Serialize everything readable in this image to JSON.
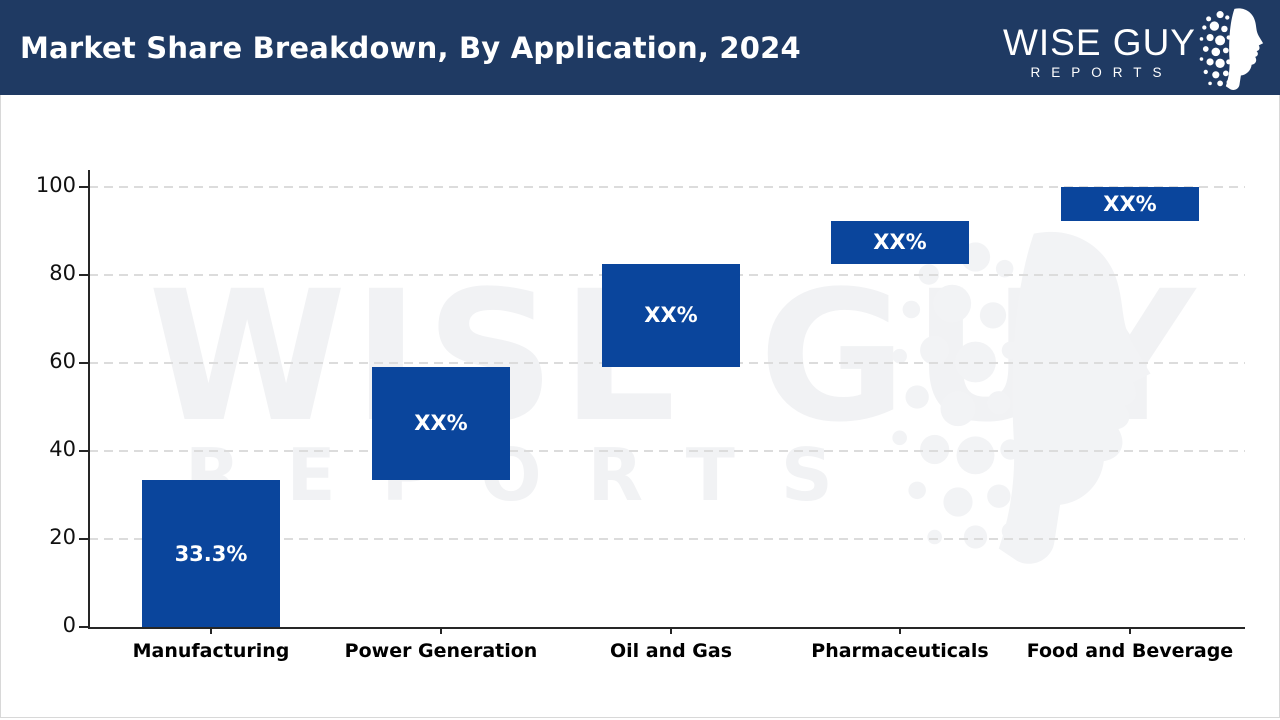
{
  "header": {
    "title": "Market Share Breakdown, By Application, 2024",
    "background_color": "#1f3a63",
    "logo": {
      "line1": "WISE GUY",
      "line2": "REPORTS"
    }
  },
  "watermark": {
    "line1": "WISE GUY",
    "line2": "REPORTS"
  },
  "chart_data": {
    "type": "bar",
    "subtype": "waterfall-stacked-breakdown",
    "title": "Market Share Breakdown, By Application, 2024",
    "xlabel": "",
    "ylabel": "",
    "ylim": [
      0,
      100
    ],
    "yticks": [
      0,
      20,
      40,
      60,
      80,
      100
    ],
    "grid": "horizontal-dashed",
    "legend": "none",
    "bar_color": "#0a459c",
    "bar_label_color": "#ffffff",
    "categories": [
      "Manufacturing",
      "Power Generation",
      "Oil and Gas",
      "Pharmaceuticals",
      "Food and Beverage"
    ],
    "series": [
      {
        "name": "Market Share (%)",
        "segments": [
          {
            "category": "Manufacturing",
            "start": 0,
            "end": 33.3,
            "value": 33.3,
            "label": "33.3%"
          },
          {
            "category": "Power Generation",
            "start": 33.3,
            "end": 59.2,
            "value": 25.9,
            "label": "XX%"
          },
          {
            "category": "Oil and Gas",
            "start": 59.2,
            "end": 82.6,
            "value": 23.4,
            "label": "XX%"
          },
          {
            "category": "Pharmaceuticals",
            "start": 82.6,
            "end": 92.2,
            "value": 9.6,
            "label": "XX%"
          },
          {
            "category": "Food and Beverage",
            "start": 92.2,
            "end": 100,
            "value": 7.8,
            "label": "XX%"
          }
        ]
      }
    ]
  }
}
